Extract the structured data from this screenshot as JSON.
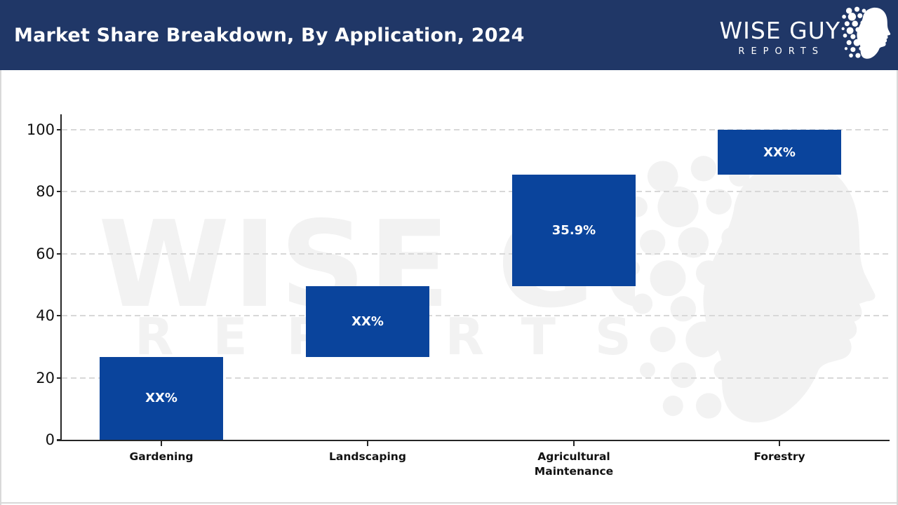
{
  "header": {
    "title": "Market Share Breakdown, By Application, 2024",
    "logo": {
      "line1": "WISE GUY",
      "line2": "REPORTS",
      "head_icon": "dotted-head-profile"
    }
  },
  "watermark": {
    "line1": "WISE GUY",
    "line2": "REPORTS",
    "head_icon": "dotted-head-profile"
  },
  "chart_data": {
    "type": "bar",
    "subtype": "floating-waterfall",
    "title": "Market Share Breakdown, By Application, 2024",
    "categories": [
      "Gardening",
      "Landscaping",
      "Agricultural Maintenance",
      "Forestry"
    ],
    "category_lines": [
      [
        "Gardening"
      ],
      [
        "Landscaping"
      ],
      [
        "Agricultural",
        "Maintenance"
      ],
      [
        "Forestry"
      ]
    ],
    "series": [
      {
        "name": "Market Share (%)",
        "ranges": [
          [
            0,
            26.8
          ],
          [
            26.8,
            49.6
          ],
          [
            49.6,
            85.5
          ],
          [
            85.5,
            100
          ]
        ],
        "values": [
          26.8,
          22.8,
          35.9,
          14.5
        ]
      }
    ],
    "bar_labels": [
      "XX%",
      "XX%",
      "35.9%",
      "XX%"
    ],
    "yticks": [
      0,
      20,
      40,
      60,
      80,
      100
    ],
    "ylim": [
      0,
      105
    ],
    "xlabel": "",
    "ylabel": "",
    "grid": "horizontal-dashed",
    "legend": "none",
    "bar_color": "#0a449c",
    "bar_label_color": "#ffffff",
    "axis_color": "#262626",
    "grid_color": "#d8d8d8",
    "header_bg_color": "#203767",
    "watermark_color": "#f2f2f2"
  }
}
